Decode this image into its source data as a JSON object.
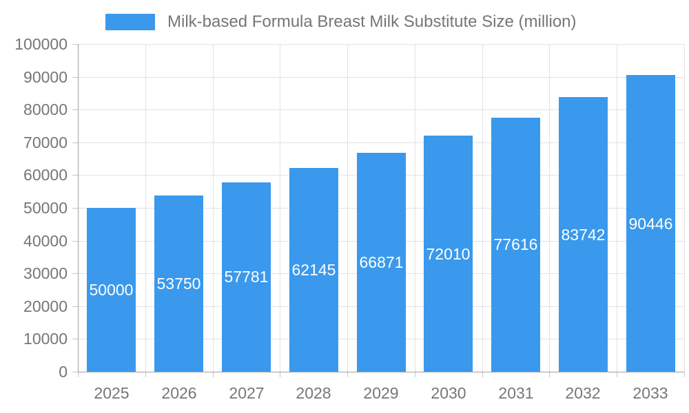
{
  "legend": {
    "label": "Milk-based Formula Breast Milk Substitute Size (million)"
  },
  "chart_data": {
    "type": "bar",
    "title": "Milk-based Formula Breast Milk Substitute Size (million)",
    "series_name": "Milk-based Formula Breast Milk Substitute Size (million)",
    "categories": [
      "2025",
      "2026",
      "2027",
      "2028",
      "2029",
      "2030",
      "2031",
      "2032",
      "2033"
    ],
    "values": [
      50000,
      53750,
      57781,
      62145,
      66871,
      72010,
      77616,
      83742,
      90446
    ],
    "value_labels": [
      "50000",
      "53750",
      "57781",
      "62145",
      "66871",
      "72010",
      "77616",
      "83742",
      "90446"
    ],
    "xlabel": "",
    "ylabel": "",
    "ylim": [
      0,
      100000
    ],
    "y_tick_labels": [
      "0",
      "10000",
      "20000",
      "30000",
      "40000",
      "50000",
      "60000",
      "70000",
      "80000",
      "90000",
      "100000"
    ],
    "grid": true,
    "legend_position": "top",
    "colors": {
      "bar": "#3A99EC",
      "value_label": "#FFFFFF",
      "axis_text": "#75767A",
      "gridline": "#E2E2E5",
      "axis_line": "#9CA0A6"
    }
  }
}
